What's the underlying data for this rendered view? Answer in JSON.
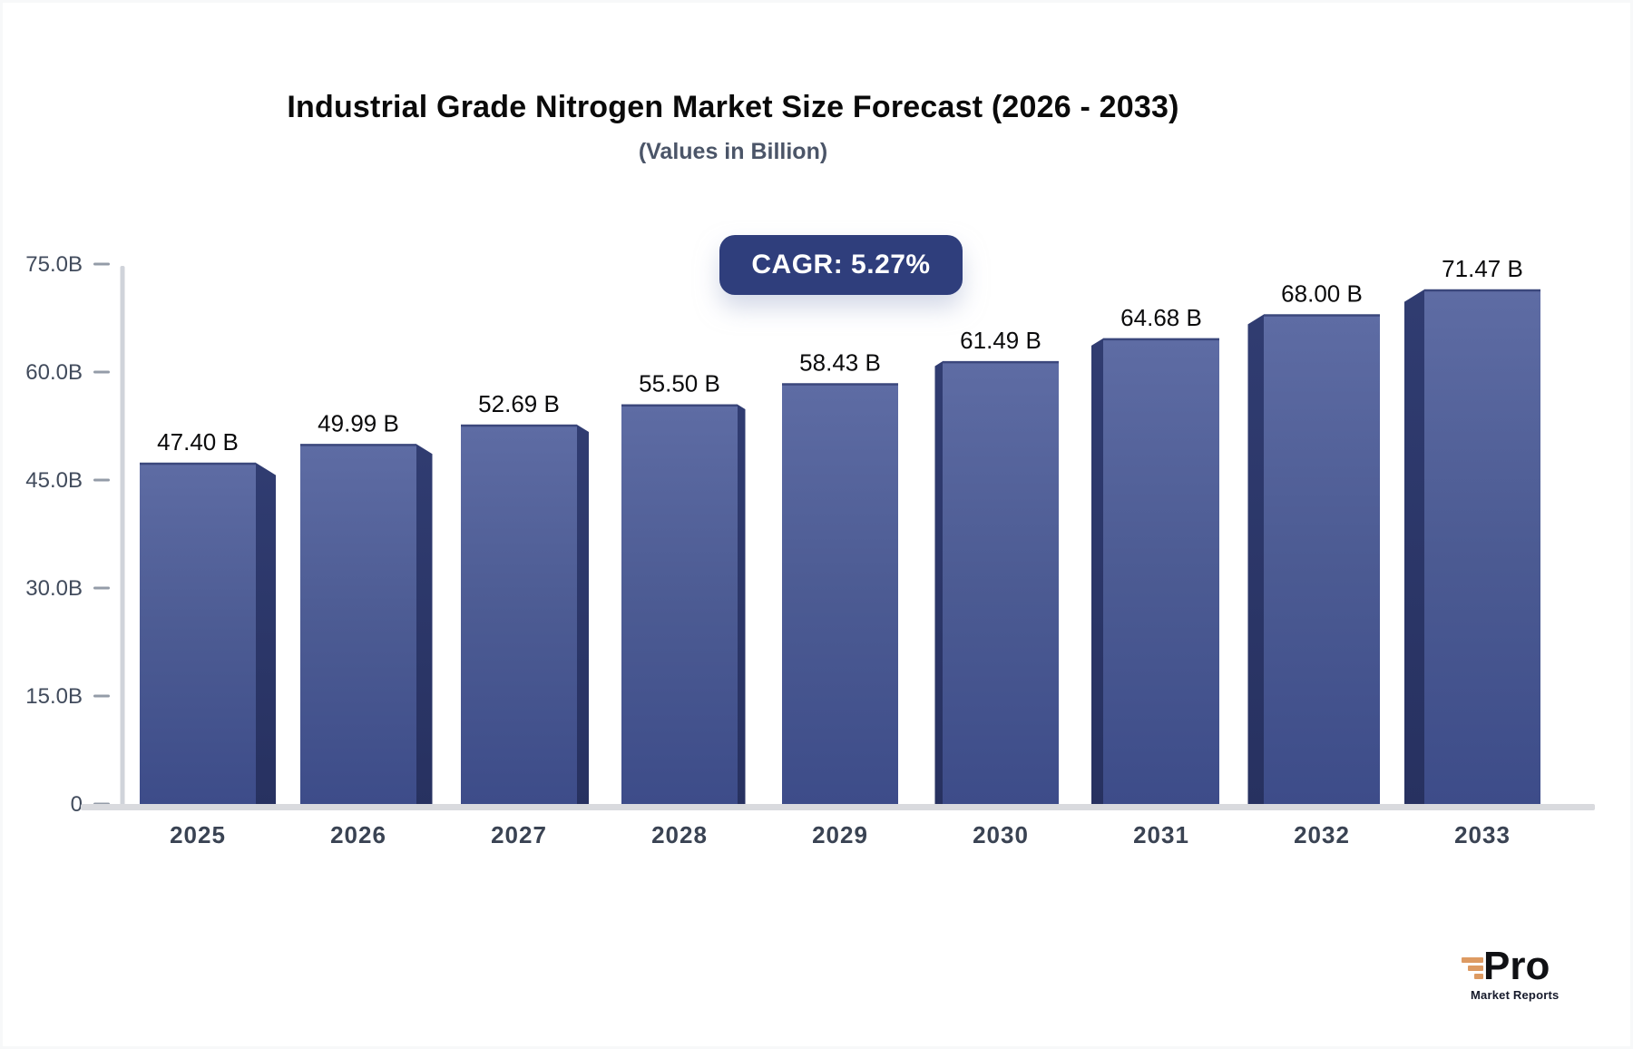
{
  "header": {
    "title": "Industrial Grade Nitrogen Market Size Forecast (2026 - 2033)",
    "subtitle": "(Values in Billion)",
    "cagr_badge": "CAGR: 5.27%"
  },
  "chart_data": {
    "type": "bar",
    "title": "Industrial Grade Nitrogen Market Size Forecast (2026 - 2033)",
    "subtitle": "(Values in Billion)",
    "cagr": "5.27%",
    "categories": [
      "2025",
      "2026",
      "2027",
      "2028",
      "2029",
      "2030",
      "2031",
      "2032",
      "2033"
    ],
    "values": [
      47.4,
      49.99,
      52.69,
      55.5,
      58.43,
      61.49,
      64.68,
      68.0,
      71.47
    ],
    "value_labels": [
      "47.40 B",
      "49.99 B",
      "52.69 B",
      "55.50 B",
      "58.43 B",
      "61.49 B",
      "64.68 B",
      "68.00 B",
      "71.47 B"
    ],
    "xlabel": "",
    "ylabel": "",
    "ylim": [
      0,
      75
    ],
    "yticks": [
      {
        "value": 0,
        "label": "0"
      },
      {
        "value": 15,
        "label": "15.0B"
      },
      {
        "value": 30,
        "label": "30.0B"
      },
      {
        "value": 45,
        "label": "45.0B"
      },
      {
        "value": 60,
        "label": "60.0B"
      },
      {
        "value": 75,
        "label": "75.0B"
      }
    ],
    "grid": false,
    "legend": false,
    "colors": {
      "bar_face_top": "#5e6ca4",
      "bar_face_mid": "#4c5b93",
      "bar_face_bottom": "#3d4c89",
      "bar_side_top": "#303c71",
      "bar_side_bottom": "#273160",
      "bar_top_edge": "#384478",
      "axis_line": "#d0d3da",
      "baseline_band": "#d9dade",
      "tick_dash": "#949ca8",
      "tick_label": "#414b5c",
      "year_label": "#3a4353",
      "value_label": "#0b0b0c"
    }
  },
  "branding": {
    "logo_text": "Pro",
    "logo_subtext": "Market Reports",
    "logo_accent": "#dd9a62"
  }
}
